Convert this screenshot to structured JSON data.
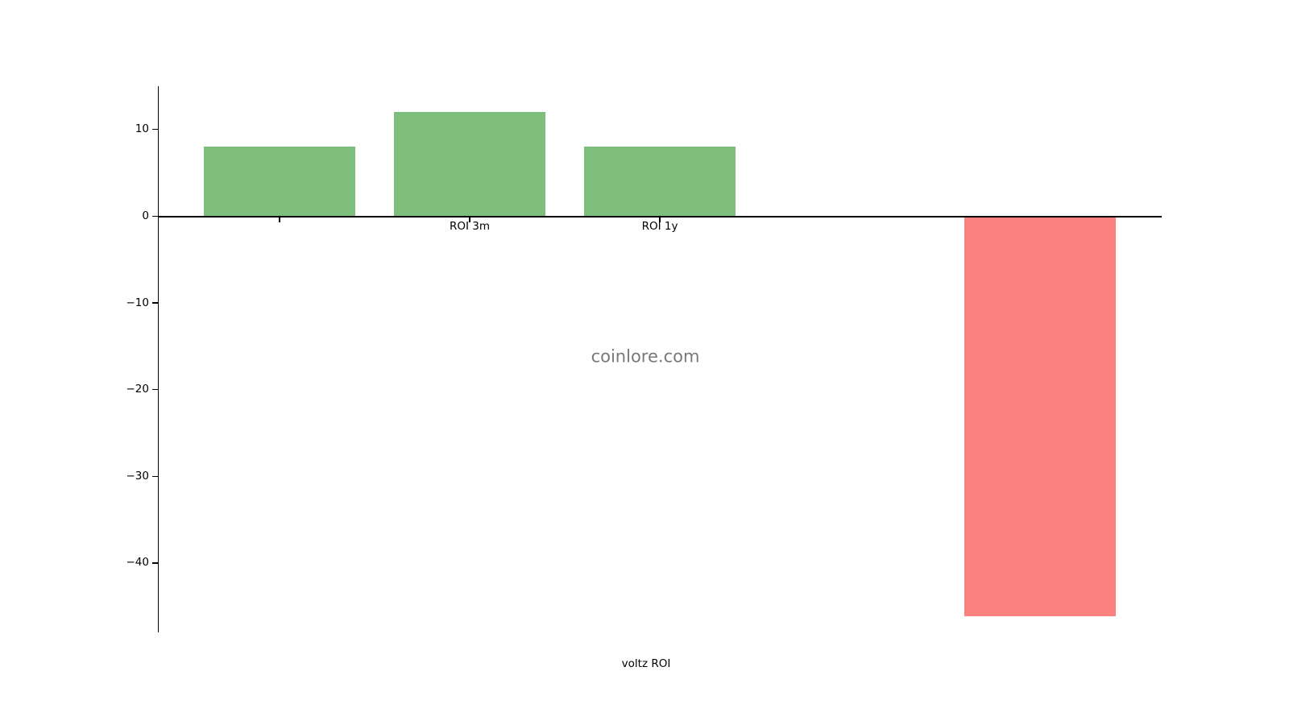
{
  "chart_data": {
    "type": "bar",
    "title": "",
    "xlabel": "voltz ROI",
    "ylabel": "",
    "watermark": "coinlore.com",
    "categories": [
      "",
      "ROI 3m",
      "ROI 1y",
      "",
      ""
    ],
    "values": [
      8,
      12,
      8,
      0,
      -46
    ],
    "x_ticks_visible": [
      true,
      true,
      true,
      false,
      false
    ],
    "yticks": [
      {
        "label": "10",
        "value": 10
      },
      {
        "label": "0",
        "value": 0
      },
      {
        "label": "−10",
        "value": -10
      },
      {
        "label": "−20",
        "value": -20
      },
      {
        "label": "−30",
        "value": -30
      },
      {
        "label": "−40",
        "value": -40
      }
    ],
    "ylim": [
      -48,
      15
    ],
    "grid": false,
    "legend_position": "none",
    "colors": {
      "positive_bar": "#7dbe7d",
      "negative_bar": "#fd8080",
      "axis": "#000000",
      "tick_text": "#000000",
      "watermark_text": "#76797c"
    }
  }
}
